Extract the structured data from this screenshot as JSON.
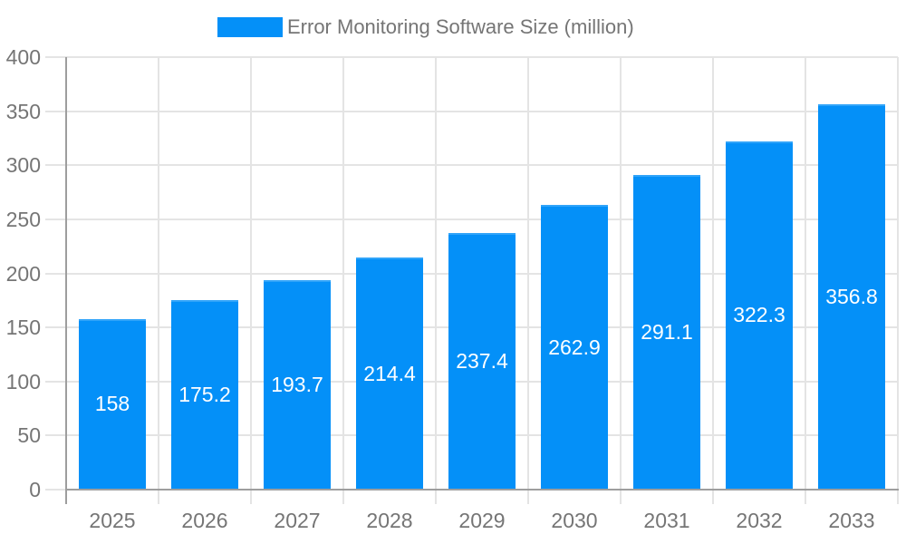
{
  "legend": {
    "label": "Error Monitoring Software Size (million)"
  },
  "colors": {
    "bar": "#0490f8",
    "grid": "#e4e4e4",
    "axis": "#9e9e9e",
    "tick_text": "#757575",
    "legend_text": "#757575",
    "value_text": "#ffffff",
    "background": "#ffffff"
  },
  "chart_data": {
    "type": "bar",
    "title": "Error Monitoring Software Size (million)",
    "series_name": "Error Monitoring Software Size (million)",
    "categories": [
      "2025",
      "2026",
      "2027",
      "2028",
      "2029",
      "2030",
      "2031",
      "2032",
      "2033"
    ],
    "values": [
      158,
      175.2,
      193.7,
      214.4,
      237.4,
      262.9,
      291.1,
      322.3,
      356.8
    ],
    "value_labels": [
      "158",
      "175.2",
      "193.7",
      "214.4",
      "237.4",
      "262.9",
      "291.1",
      "322.3",
      "356.8"
    ],
    "xlabel": "",
    "ylabel": "",
    "ylim": [
      0,
      400
    ],
    "yticks": [
      0,
      50,
      100,
      150,
      200,
      250,
      300,
      350,
      400
    ],
    "grid": true,
    "legend_position": "top",
    "value_label_position": "inside-center"
  }
}
